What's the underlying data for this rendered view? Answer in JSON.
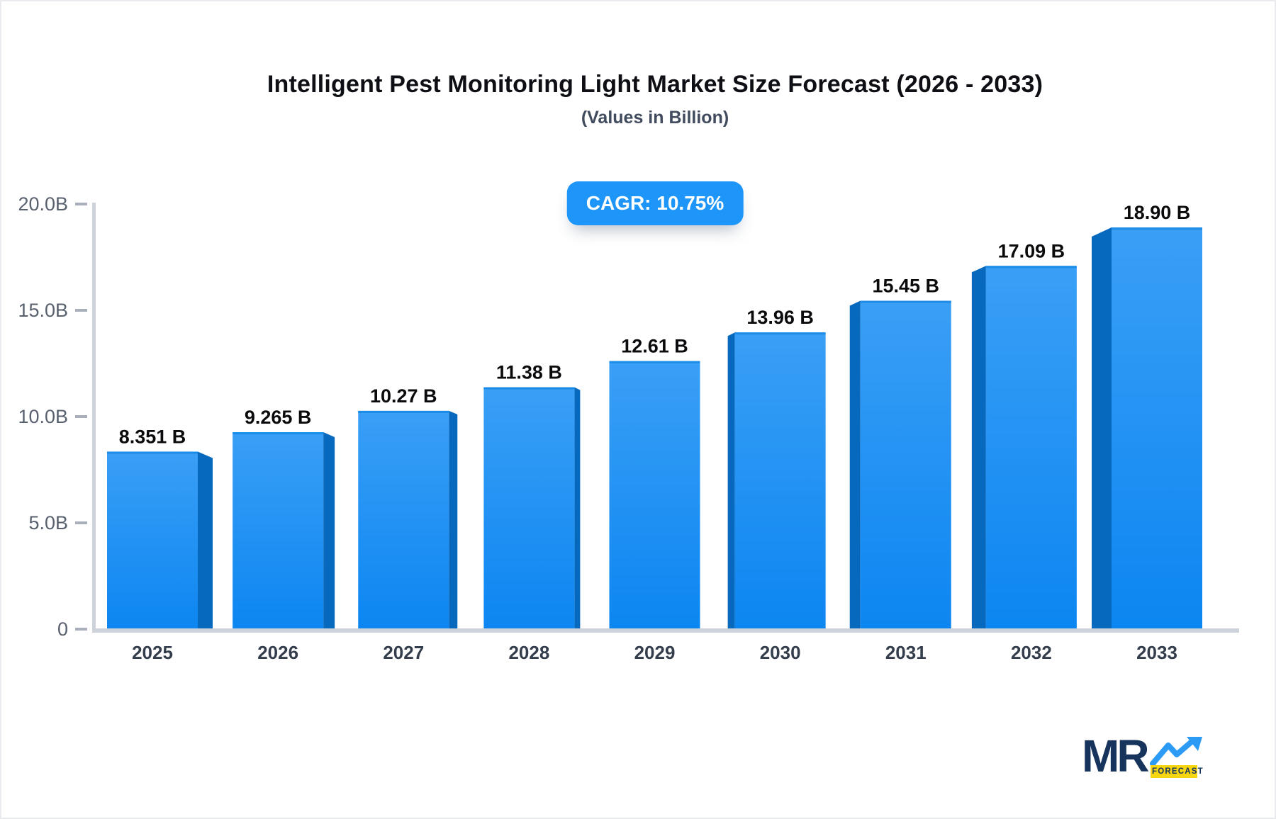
{
  "header": {
    "title": "Intelligent Pest Monitoring Light Market Size Forecast (2026 - 2033)",
    "subtitle": "(Values in Billion)"
  },
  "badge": {
    "label": "CAGR: 10.75%",
    "bg_color": "#1e96f9",
    "text_color": "#ffffff"
  },
  "chart_data": {
    "type": "bar",
    "title": "Intelligent Pest Monitoring Light Market Size Forecast (2026 - 2033)",
    "subtitle": "(Values in Billion)",
    "unit": "Billion USD",
    "categories": [
      "2025",
      "2026",
      "2027",
      "2028",
      "2029",
      "2030",
      "2031",
      "2032",
      "2033"
    ],
    "values": [
      8.351,
      9.265,
      10.27,
      11.38,
      12.61,
      13.96,
      15.45,
      17.09,
      18.9
    ],
    "value_labels": [
      "8.351 B",
      "9.265 B",
      "10.27 B",
      "11.38 B",
      "12.61 B",
      "13.96 B",
      "15.45 B",
      "17.09 B",
      "18.90 B"
    ],
    "cagr": "CAGR: 10.75%",
    "ylim": [
      0,
      20
    ],
    "yticks": [
      {
        "value": 20,
        "label": "20.0B"
      },
      {
        "value": 15,
        "label": "15.0B"
      },
      {
        "value": 10,
        "label": "10.0B"
      },
      {
        "value": 5,
        "label": "5.0B"
      },
      {
        "value": 0,
        "label": "0"
      }
    ],
    "grid": false,
    "legend": false,
    "style_3d": "center-perspective",
    "colors": {
      "bar_face_top": "#3a9ff6",
      "bar_face_bottom": "#0c86f1",
      "bar_top_edge": "#1b8ce8",
      "bar_side": "#0769bd",
      "axis_line": "#ced2da",
      "tick_mark": "#a9b0bc",
      "ytick_label": "#59616f",
      "xtick_label": "#333d4b",
      "value_label": "#0b0b0e"
    }
  },
  "logo": {
    "mr_text": "MR",
    "forecast_text": "FORECAST",
    "mr_color": "#17355c",
    "arrow_color": "#2b9bf5",
    "forecast_bg": "#f8d511",
    "forecast_color": "#17355c"
  }
}
